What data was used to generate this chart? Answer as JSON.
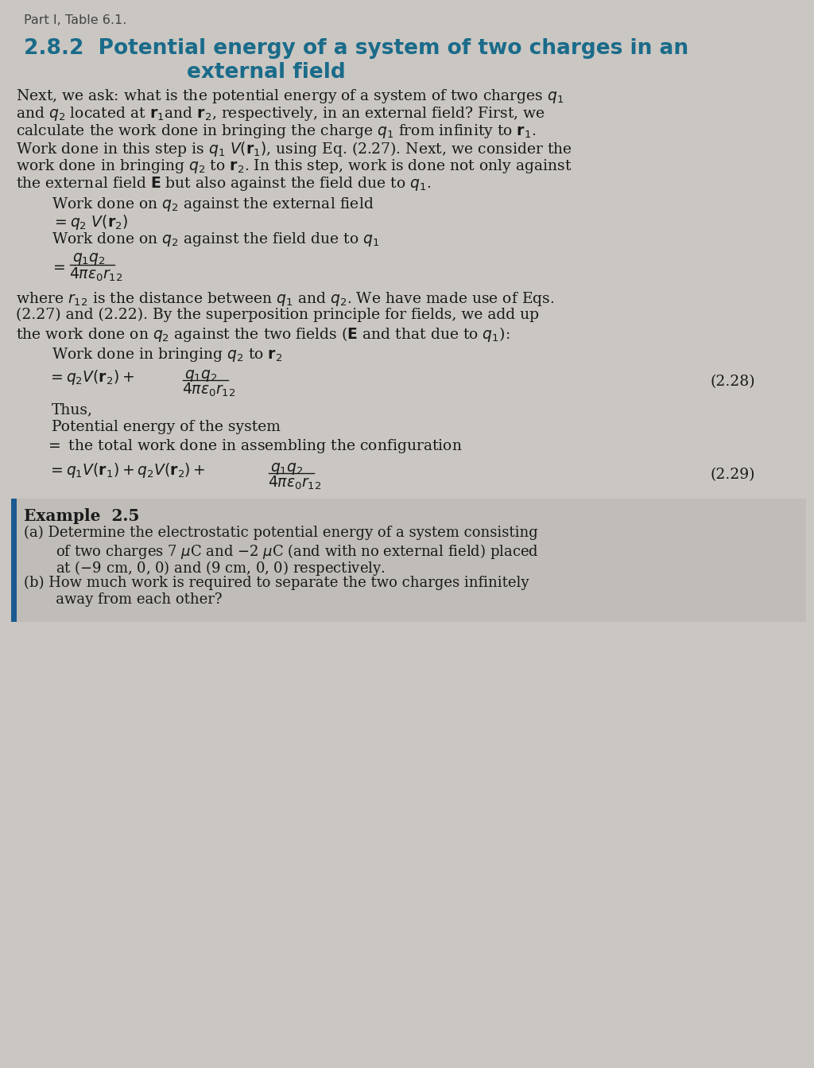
{
  "page_bg": "#cac6c2",
  "title_color": "#1a6b8a",
  "body_color": "#1a1a1a",
  "left_bar_color": "#1a5a90",
  "example_bg": "#b8b4b0",
  "header": "Part I, Table 6.1.",
  "title1": "2.8.2  Potential energy of a system of two charges in an",
  "title2": "external field"
}
